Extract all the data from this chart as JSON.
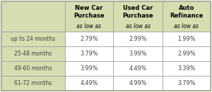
{
  "col_headers": [
    [
      "New Car",
      "Purchase",
      "as low as"
    ],
    [
      "Used Car",
      "Purchase",
      "as low as"
    ],
    [
      "Auto",
      "Refinance",
      "as low as"
    ]
  ],
  "row_labels": [
    "up to 24 months",
    "25-48 months",
    "49-60 months",
    "61-72 months"
  ],
  "cell_values": [
    [
      "2.79%",
      "2.99%",
      "1.99%"
    ],
    [
      "3.79%",
      "3.99%",
      "2.99%"
    ],
    [
      "3.99%",
      "4.49%",
      "3.39%"
    ],
    [
      "4.49%",
      "4.99%",
      "3.79%"
    ]
  ],
  "header_bg": "#d6ddb0",
  "row_label_bg": "#d6ddb0",
  "data_bg": "#ffffff",
  "border_color": "#999999",
  "header_bold_color": "#000000",
  "data_color": "#444444",
  "outer_border_color": "#aaaaaa",
  "fig_bg": "#e8eecb"
}
